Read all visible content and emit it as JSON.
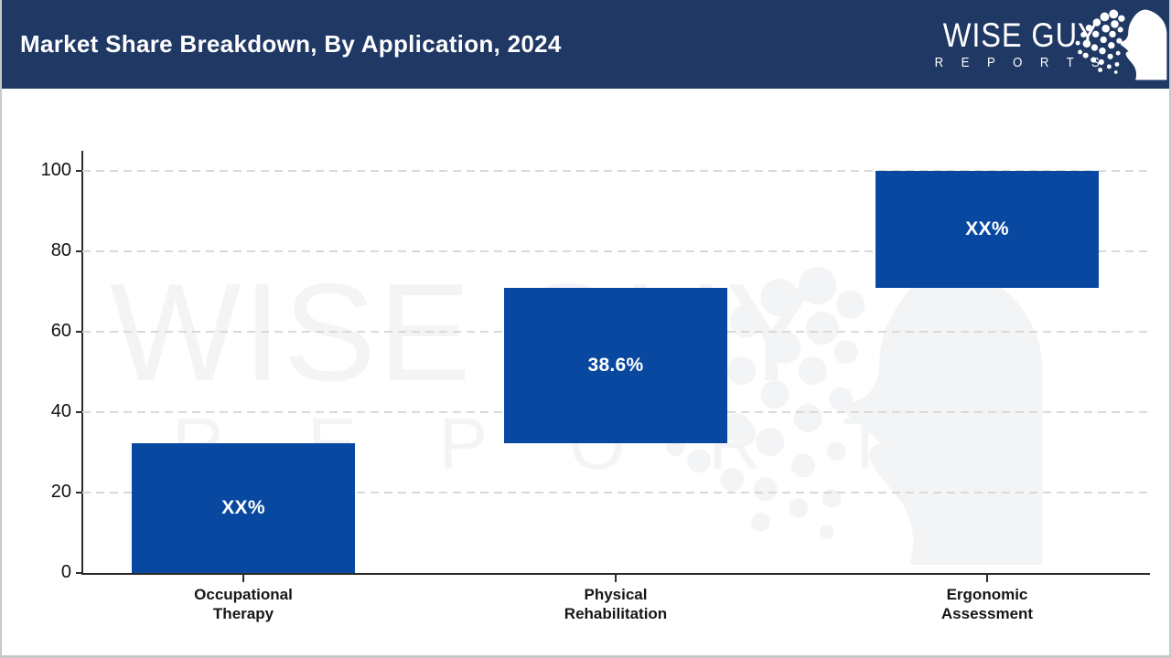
{
  "header": {
    "title": "Market Share Breakdown, By Application, 2024",
    "logo": {
      "line1": "WISE GUY",
      "line2": "R E P O R T S"
    }
  },
  "watermark": {
    "line1": "WISE GUY",
    "line2": "R E P O R T S"
  },
  "colors": {
    "header_bg": "#1f3864",
    "bar": "#0848a0",
    "grid": "#d9d9d9",
    "axis": "#2b2b2b",
    "bar_label_text": "#ffffff",
    "watermark": "#f3f4f6"
  },
  "chart_data": {
    "type": "bar",
    "subtype": "waterfall",
    "title": "Market Share Breakdown, By Application, 2024",
    "categories": [
      "Occupational Therapy",
      "Physical Rehabilitation",
      "Ergonomic Assessment"
    ],
    "segments": [
      {
        "category": "Occupational Therapy",
        "start": 0,
        "end": 32.3,
        "value": 32.3,
        "label": "XX%"
      },
      {
        "category": "Physical Rehabilitation",
        "start": 32.3,
        "end": 70.9,
        "value": 38.6,
        "label": "38.6%"
      },
      {
        "category": "Ergonomic Assessment",
        "start": 70.9,
        "end": 100,
        "value": 29.1,
        "label": "XX%"
      }
    ],
    "y_ticks": [
      0,
      20,
      40,
      60,
      80,
      100
    ],
    "ylim": [
      0,
      105
    ],
    "xlabel": "",
    "ylabel": "",
    "grid": "horizontal-dashed",
    "legend": "none"
  }
}
